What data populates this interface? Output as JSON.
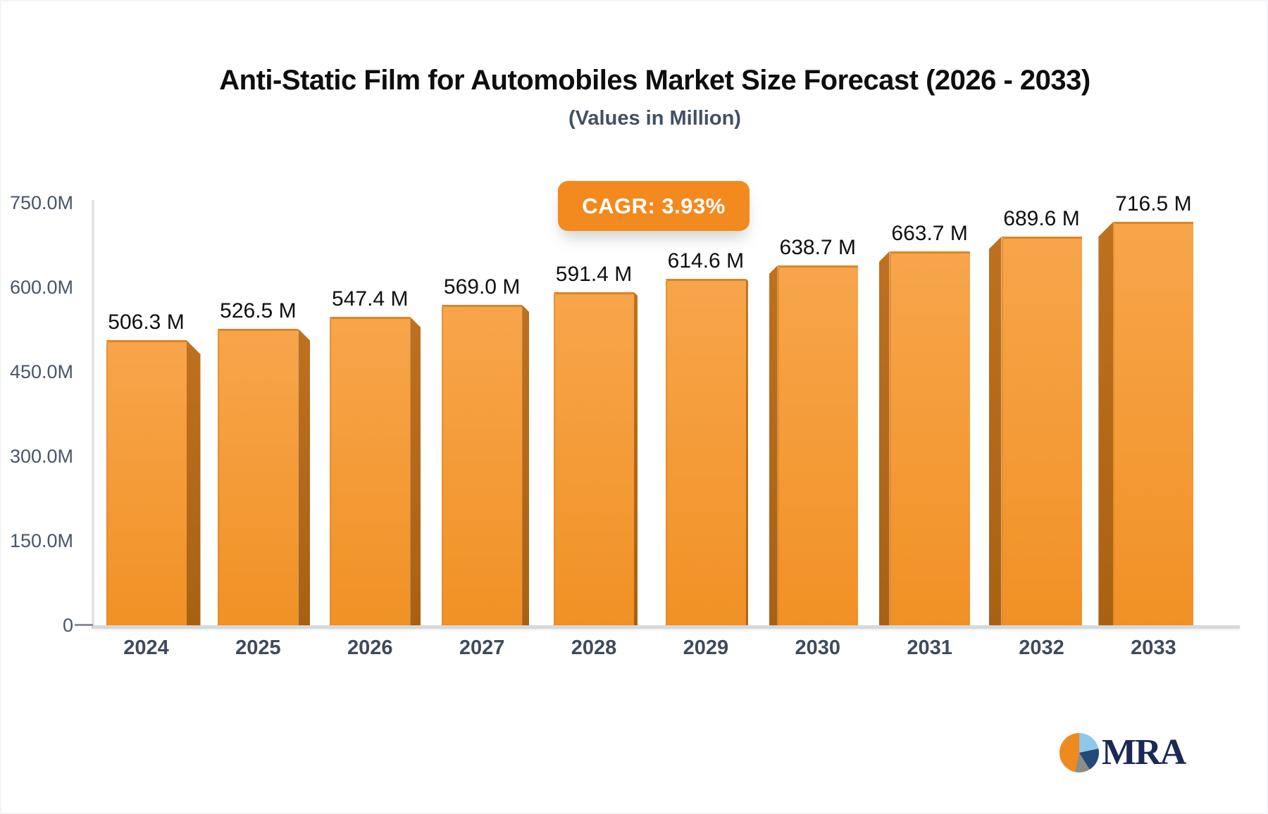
{
  "badge": {
    "label": "CAGR: 3.93%",
    "bg": "#f28a1f",
    "text_color": "#ffffff"
  },
  "logo": {
    "text": "MRA",
    "icon": "pie-chart-icon",
    "pie_colors": [
      "#ef8a20",
      "#8ec7e9",
      "#244a77",
      "#8d8d8d"
    ],
    "text_color": "#1a2a55"
  },
  "colors": {
    "bar_front_top": "#f7a54b",
    "bar_front_bottom": "#f19125",
    "bar_side": "#b06a1c",
    "bar_top_edge": "#dd8426",
    "axis_line": "#d6d9db",
    "tick_text": "#4a5568",
    "category_text": "#3e4a5c",
    "value_label_text": "#0f0f0f",
    "subtitle_text": "#425062",
    "title_text": "#0e0e0e"
  },
  "chart_data": {
    "type": "bar",
    "title": "Anti-Static Film for Automobiles Market Size Forecast (2026 - 2033)",
    "subtitle": "(Values in Million)",
    "categories": [
      "2024",
      "2025",
      "2026",
      "2027",
      "2028",
      "2029",
      "2030",
      "2031",
      "2032",
      "2033"
    ],
    "values": [
      506.3,
      526.5,
      547.4,
      569.0,
      591.4,
      614.6,
      638.7,
      663.7,
      689.6,
      716.5
    ],
    "value_suffix": " M",
    "value_labels": [
      "506.3 M",
      "526.5 M",
      "547.4 M",
      "569.0 M",
      "591.4 M",
      "614.6 M",
      "638.7 M",
      "663.7 M",
      "689.6 M",
      "716.5 M"
    ],
    "y_ticks": [
      {
        "value": 750,
        "label": "750.0M"
      },
      {
        "value": 600,
        "label": "600.0M"
      },
      {
        "value": 450,
        "label": "450.0M"
      },
      {
        "value": 300,
        "label": "300.0M"
      },
      {
        "value": 150,
        "label": "150.0M"
      },
      {
        "value": 0,
        "label": "0"
      }
    ],
    "ylim": [
      0,
      750
    ],
    "xlabel": "",
    "ylabel": "",
    "grid": false,
    "legend": false,
    "bar_style": "3d"
  }
}
